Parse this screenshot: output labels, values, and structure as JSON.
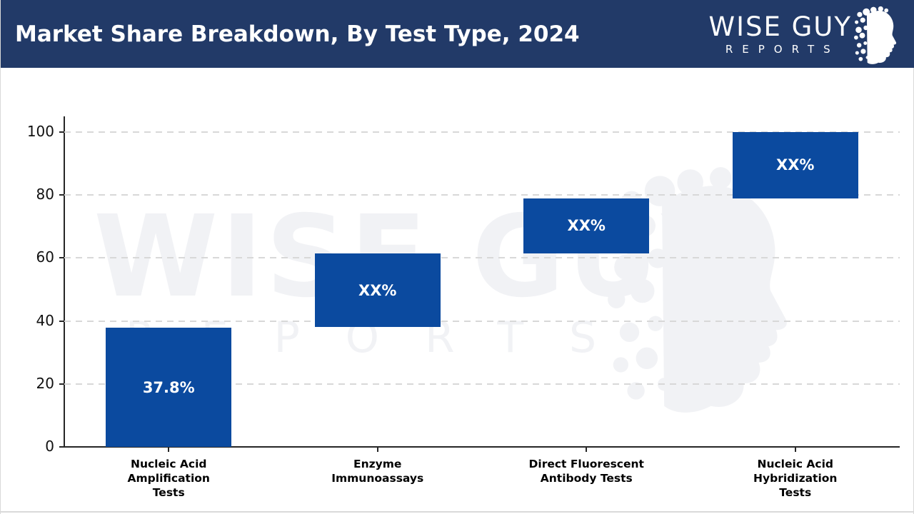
{
  "header": {
    "title": "Market Share Breakdown, By Test Type, 2024"
  },
  "brand": {
    "line1": "WISE GUY",
    "line2": "REPORTS"
  },
  "watermark": {
    "line1": "WISE GUY",
    "line2": "REPORTS"
  },
  "colors": {
    "header_bg": "#223a68",
    "bar_fill": "#0b4a9f",
    "gridline": "#d8d8d8",
    "axis": "#262626",
    "watermark": "#f1f2f5",
    "value_label_text": "#ffffff"
  },
  "chart_data": {
    "type": "bar",
    "subtype": "waterfall",
    "title": "Market Share Breakdown, By Test Type, 2024",
    "xlabel": "",
    "ylabel": "",
    "ylim": [
      0,
      100
    ],
    "yticks": [
      0,
      20,
      40,
      60,
      80,
      100
    ],
    "grid": "horizontal-dashed",
    "legend": "none",
    "categories": [
      "Nucleic Acid\nAmplification\nTests",
      "Enzyme\nImmunoassays",
      "Direct Fluorescent\nAntibody Tests",
      "Nucleic Acid\nHybridization\nTests"
    ],
    "segments": [
      {
        "name": "Nucleic Acid Amplification Tests",
        "start": 0,
        "end": 37.8,
        "label": "37.8%"
      },
      {
        "name": "Enzyme Immunoassays",
        "start": 38,
        "end": 61.5,
        "label": "XX%"
      },
      {
        "name": "Direct Fluorescent Antibody Tests",
        "start": 61.5,
        "end": 79,
        "label": "XX%"
      },
      {
        "name": "Nucleic Acid Hybridization Tests",
        "start": 79,
        "end": 100,
        "label": "XX%"
      }
    ]
  }
}
